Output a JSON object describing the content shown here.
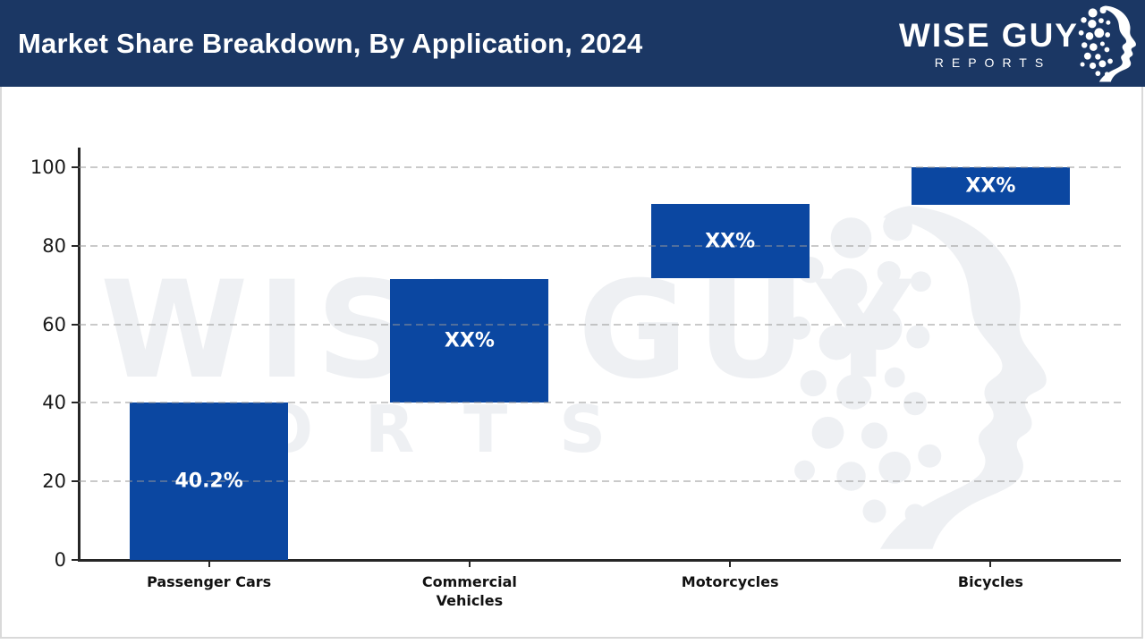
{
  "header": {
    "title": "Market Share Breakdown, By Application, 2024",
    "logo": {
      "name": "WISE GUY",
      "sub": "REPORTS"
    }
  },
  "watermark": {
    "line1": "WISE GUY",
    "line2": "PORTS"
  },
  "chart_data": {
    "type": "bar",
    "subtype": "waterfall",
    "title": "Market Share Breakdown, By Application, 2024",
    "xlabel": "",
    "ylabel": "",
    "categories": [
      "Passenger Cars",
      "Commercial\nVehicles",
      "Motorcycles",
      "Bicycles"
    ],
    "segments": [
      {
        "category": "Passenger Cars",
        "start": 0,
        "end": 40.2,
        "label": "40.2%"
      },
      {
        "category": "Commercial Vehicles",
        "start": 40.2,
        "end": 71.5,
        "label": "XX%"
      },
      {
        "category": "Motorcycles",
        "start": 71.8,
        "end": 90.6,
        "label": "XX%"
      },
      {
        "category": "Bicycles",
        "start": 90.4,
        "end": 100,
        "label": "XX%"
      }
    ],
    "yticks": [
      0,
      20,
      40,
      60,
      80,
      100
    ],
    "ylim": [
      0,
      105
    ],
    "grid": true,
    "grid_style": "dashed",
    "legend": false
  },
  "colors": {
    "header_bg": "#1b3764",
    "bar": "#0b47a1",
    "bar_label": "#ffffff",
    "axis": "#262626",
    "grid": "#d9d9d9",
    "card_border": "#d9d9d9",
    "watermark": "#eef0f3"
  }
}
